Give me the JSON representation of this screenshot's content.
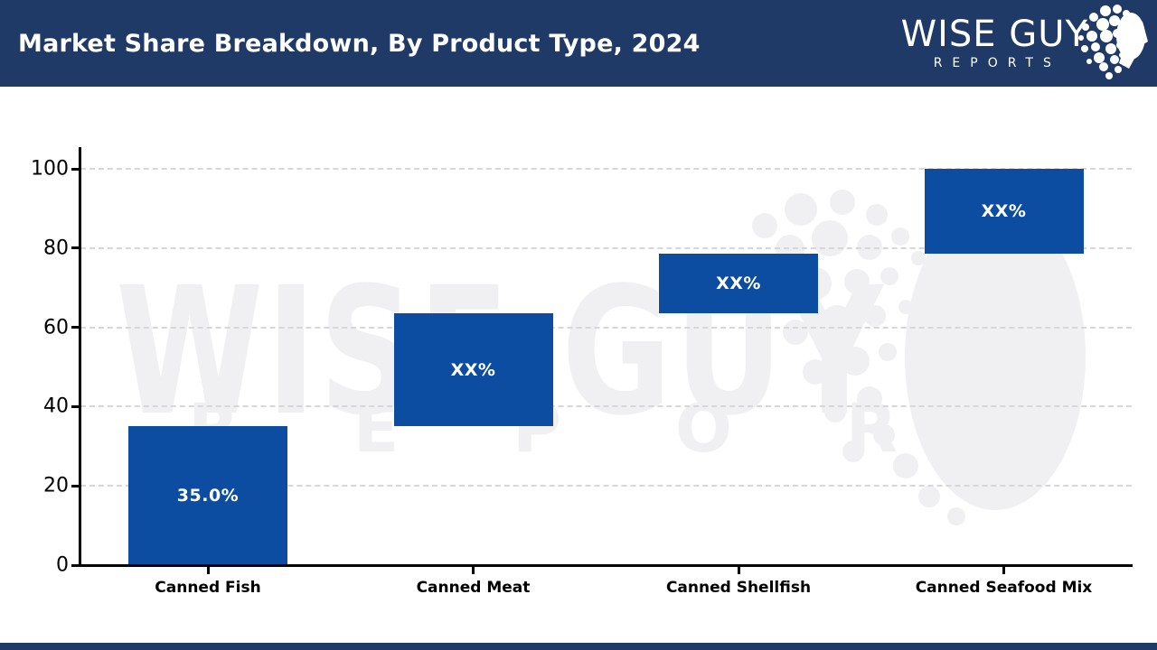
{
  "header": {
    "title": "Market Share Breakdown, By Product Type, 2024",
    "logo": {
      "line1": "WISE GUY",
      "line2": "REPORTS"
    }
  },
  "watermark": {
    "line1": "WISE GUY",
    "line2": "R E P O R T S"
  },
  "colors": {
    "header_bg": "#1f3a66",
    "bar_fill": "#0c4da2",
    "bar_label": "#ffffff",
    "gridline": "#d7d7d7",
    "axis": "#000000",
    "watermark": "#f0f0f2"
  },
  "chart_data": {
    "type": "bar",
    "subtype": "waterfall",
    "title": "Market Share Breakdown, By Product Type, 2024",
    "categories": [
      "Canned Fish",
      "Canned Meat",
      "Canned Shellfish",
      "Canned Seafood Mix"
    ],
    "segments": [
      {
        "category": "Canned Fish",
        "start": 0.0,
        "end": 35.0,
        "label": "35.0%"
      },
      {
        "category": "Canned Meat",
        "start": 35.0,
        "end": 63.5,
        "label": "XX%"
      },
      {
        "category": "Canned Shellfish",
        "start": 63.5,
        "end": 78.5,
        "label": "XX%"
      },
      {
        "category": "Canned Seafood Mix",
        "start": 78.5,
        "end": 100.0,
        "label": "XX%"
      }
    ],
    "ylim": [
      0,
      100
    ],
    "yticks": [
      0,
      20,
      40,
      60,
      80,
      100
    ],
    "grid": "horizontal-dashed",
    "legend": "none",
    "xlabel": "",
    "ylabel": ""
  }
}
